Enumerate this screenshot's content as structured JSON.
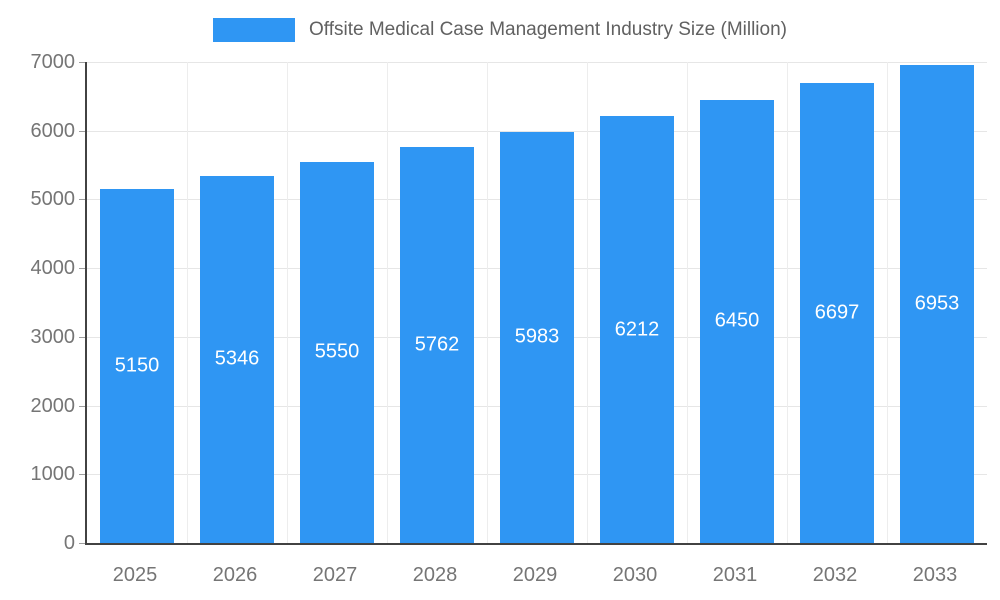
{
  "chart_data": {
    "type": "bar",
    "title": "Offsite Medical Case Management Industry Size (Million)",
    "categories": [
      "2025",
      "2026",
      "2027",
      "2028",
      "2029",
      "2030",
      "2031",
      "2032",
      "2033"
    ],
    "values": [
      5150,
      5346,
      5550,
      5762,
      5983,
      6212,
      6450,
      6697,
      6953
    ],
    "xlabel": "",
    "ylabel": "",
    "ylim": [
      0,
      7000
    ],
    "yticks": [
      0,
      1000,
      2000,
      3000,
      4000,
      5000,
      6000,
      7000
    ],
    "grid": true,
    "legend_position": "top",
    "bar_color": "#2F96F3",
    "value_label_color": "#ffffff",
    "axis_text_color": "#757575",
    "title_color": "#616161"
  }
}
